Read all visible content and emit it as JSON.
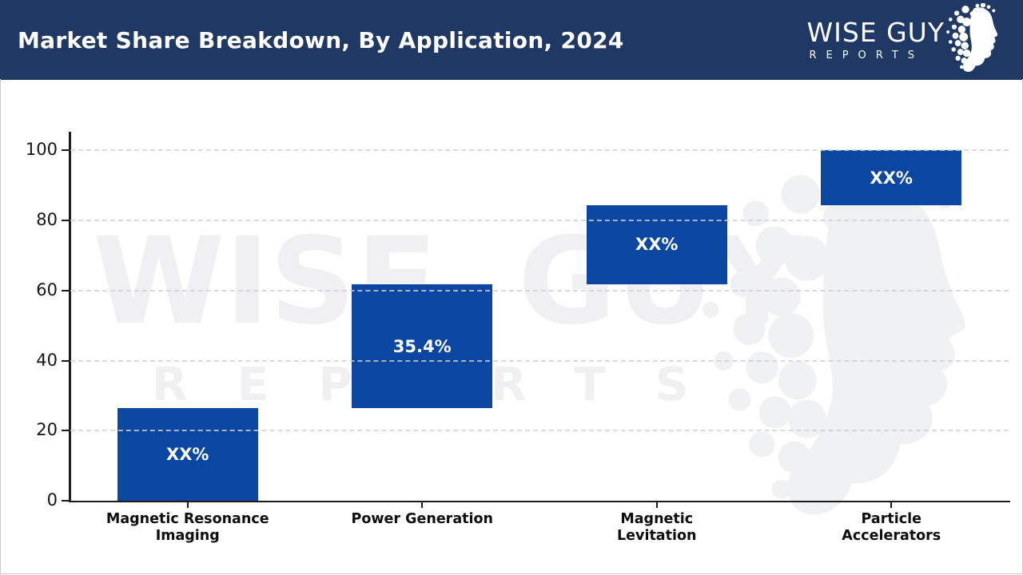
{
  "header": {
    "title": "Market Share Breakdown, By Application, 2024",
    "logo": {
      "line1": "WISE GUY",
      "line2": "REPORTS",
      "face_icon": "dot-head-profile"
    }
  },
  "watermark": {
    "line1": "WISE GUY",
    "line2": "REPORTS",
    "face_icon": "dot-head-profile"
  },
  "colors": {
    "header_bg": "#1f3864",
    "bar": "#0b47a1",
    "axis": "#1c1c1c",
    "gridline": "#d5d8de",
    "watermark": "#f0f1f3",
    "frame_border": "#c9c9c9",
    "title_text": "#ffffff",
    "bar_label_text": "#ffffff"
  },
  "chart_data": {
    "type": "bar",
    "subtype": "floating-waterfall",
    "title": "Market Share Breakdown, By Application, 2024",
    "categories": [
      [
        "Magnetic Resonance",
        "Imaging"
      ],
      [
        "Power Generation"
      ],
      [
        "Magnetic",
        "Levitation"
      ],
      [
        "Particle",
        "Accelerators"
      ]
    ],
    "segments": [
      {
        "category": "Magnetic Resonance Imaging",
        "start": 0,
        "end": 26.4,
        "label": "XX%"
      },
      {
        "category": "Power Generation",
        "start": 26.4,
        "end": 61.8,
        "label": "35.4%"
      },
      {
        "category": "Magnetic Levitation",
        "start": 61.8,
        "end": 84.4,
        "label": "XX%"
      },
      {
        "category": "Particle Accelerators",
        "start": 84.4,
        "end": 100,
        "label": "XX%"
      }
    ],
    "ylim": [
      0,
      100
    ],
    "yticks": [
      0,
      20,
      40,
      60,
      80,
      100
    ],
    "grid": "horizontal-dashed",
    "legend": "none",
    "xlabel": "",
    "ylabel": ""
  }
}
